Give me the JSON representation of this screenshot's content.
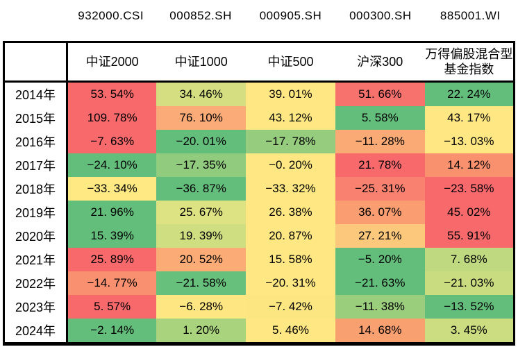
{
  "codes": [
    "932000.CSI",
    "000852.SH",
    "000905.SH",
    "000300.SH",
    "885001.WI"
  ],
  "table": {
    "corner_label": "",
    "columns_display": [
      "中证2000",
      "中证1000",
      "中证500",
      "沪深300",
      "万得偏股混合型\n基金指数"
    ],
    "rows": [
      {
        "year": "2014年",
        "cells": [
          {
            "text": "53. 54%",
            "bg": "#F8696B"
          },
          {
            "text": "34. 46%",
            "bg": "#D5DF82"
          },
          {
            "text": "39. 01%",
            "bg": "#FFE883"
          },
          {
            "text": "51. 66%",
            "bg": "#F8726D"
          },
          {
            "text": "22. 24%",
            "bg": "#63BE7B"
          }
        ]
      },
      {
        "year": "2015年",
        "cells": [
          {
            "text": "109. 78%",
            "bg": "#F8696B"
          },
          {
            "text": "76. 10%",
            "bg": "#FBAB77"
          },
          {
            "text": "43. 12%",
            "bg": "#FFE883"
          },
          {
            "text": "5. 58%",
            "bg": "#63BE7B"
          },
          {
            "text": "43. 17%",
            "bg": "#FFE883"
          }
        ]
      },
      {
        "year": "2016年",
        "cells": [
          {
            "text": "−7. 63%",
            "bg": "#F8696B"
          },
          {
            "text": "−20. 01%",
            "bg": "#63BE7B"
          },
          {
            "text": "−17. 78%",
            "bg": "#95CC7E"
          },
          {
            "text": "−11. 28%",
            "bg": "#FAAA74"
          },
          {
            "text": "−13. 03%",
            "bg": "#FFE883"
          }
        ]
      },
      {
        "year": "2017年",
        "cells": [
          {
            "text": "−24. 10%",
            "bg": "#63BE7B"
          },
          {
            "text": "−17. 35%",
            "bg": "#90CB7E"
          },
          {
            "text": "−0. 20%",
            "bg": "#FFE883"
          },
          {
            "text": "21. 78%",
            "bg": "#F8696B"
          },
          {
            "text": "14. 12%",
            "bg": "#F9916F"
          }
        ]
      },
      {
        "year": "2018年",
        "cells": [
          {
            "text": "−33. 34%",
            "bg": "#FEE983"
          },
          {
            "text": "−36. 87%",
            "bg": "#63BE7B"
          },
          {
            "text": "−33. 32%",
            "bg": "#FFE883"
          },
          {
            "text": "−25. 31%",
            "bg": "#F9816F"
          },
          {
            "text": "−23. 58%",
            "bg": "#F8696B"
          }
        ]
      },
      {
        "year": "2019年",
        "cells": [
          {
            "text": "21. 96%",
            "bg": "#63BE7B"
          },
          {
            "text": "25. 67%",
            "bg": "#DDE282"
          },
          {
            "text": "26. 38%",
            "bg": "#FFE883"
          },
          {
            "text": "36. 07%",
            "bg": "#FA9D71"
          },
          {
            "text": "45. 02%",
            "bg": "#F8696B"
          }
        ]
      },
      {
        "year": "2020年",
        "cells": [
          {
            "text": "15. 39%",
            "bg": "#63BE7B"
          },
          {
            "text": "19. 39%",
            "bg": "#CFDE81"
          },
          {
            "text": "20. 87%",
            "bg": "#FFE883"
          },
          {
            "text": "27. 21%",
            "bg": "#FCC87B"
          },
          {
            "text": "55. 91%",
            "bg": "#F8696B"
          }
        ]
      },
      {
        "year": "2021年",
        "cells": [
          {
            "text": "25. 89%",
            "bg": "#F8696B"
          },
          {
            "text": "20. 52%",
            "bg": "#FBAC76"
          },
          {
            "text": "15. 58%",
            "bg": "#FFE883"
          },
          {
            "text": "−5. 20%",
            "bg": "#63BE7B"
          },
          {
            "text": "7. 68%",
            "bg": "#BFD980"
          }
        ]
      },
      {
        "year": "2022年",
        "cells": [
          {
            "text": "−14. 77%",
            "bg": "#F9906F"
          },
          {
            "text": "−21. 58%",
            "bg": "#67C07B"
          },
          {
            "text": "−20. 31%",
            "bg": "#FFE883"
          },
          {
            "text": "−21. 63%",
            "bg": "#63BE7B"
          },
          {
            "text": "−21. 03%",
            "bg": "#C9DC80"
          }
        ]
      },
      {
        "year": "2023年",
        "cells": [
          {
            "text": "5. 57%",
            "bg": "#F8696B"
          },
          {
            "text": "−6. 28%",
            "bg": "#FEE783"
          },
          {
            "text": "−7. 42%",
            "bg": "#FBE682"
          },
          {
            "text": "−11. 38%",
            "bg": "#9ACE7D"
          },
          {
            "text": "−13. 52%",
            "bg": "#63BE7B"
          }
        ]
      },
      {
        "year": "2024年",
        "cells": [
          {
            "text": "−2. 14%",
            "bg": "#63BE7B"
          },
          {
            "text": "1. 20%",
            "bg": "#A9D37D"
          },
          {
            "text": "5. 46%",
            "bg": "#FFE883"
          },
          {
            "text": "14. 68%",
            "bg": "#F9A071"
          },
          {
            "text": "3. 45%",
            "bg": "#CCDC80"
          }
        ]
      }
    ]
  },
  "chart_data": {
    "type": "heatmap",
    "title": "",
    "categories": [
      "2014年",
      "2015年",
      "2016年",
      "2017年",
      "2018年",
      "2019年",
      "2020年",
      "2021年",
      "2022年",
      "2023年",
      "2024年"
    ],
    "series": [
      {
        "name": "中证2000",
        "code": "932000.CSI",
        "values": [
          53.54,
          109.78,
          -7.63,
          -24.1,
          -33.34,
          21.96,
          15.39,
          25.89,
          -14.77,
          5.57,
          -2.14
        ]
      },
      {
        "name": "中证1000",
        "code": "000852.SH",
        "values": [
          34.46,
          76.1,
          -20.01,
          -17.35,
          -36.87,
          25.67,
          19.39,
          20.52,
          -21.58,
          -6.28,
          1.2
        ]
      },
      {
        "name": "中证500",
        "code": "000905.SH",
        "values": [
          39.01,
          43.12,
          -17.78,
          -0.2,
          -33.32,
          26.38,
          20.87,
          15.58,
          -20.31,
          -7.42,
          5.46
        ]
      },
      {
        "name": "沪深300",
        "code": "000300.SH",
        "values": [
          51.66,
          5.58,
          -11.28,
          21.78,
          -25.31,
          36.07,
          27.21,
          -5.2,
          -21.63,
          -11.38,
          14.68
        ]
      },
      {
        "name": "万得偏股混合型基金指数",
        "code": "885001.WI",
        "values": [
          22.24,
          43.17,
          -13.03,
          14.12,
          -23.58,
          45.02,
          55.91,
          7.68,
          -21.03,
          -13.52,
          3.45
        ]
      }
    ],
    "unit": "%",
    "legend_position": "none",
    "grid": false,
    "color_scale": {
      "high": "#F8696B",
      "mid": "#FFE883",
      "low": "#63BE7B",
      "note": "per-row: red = highest annual return in row, green = lowest"
    }
  }
}
